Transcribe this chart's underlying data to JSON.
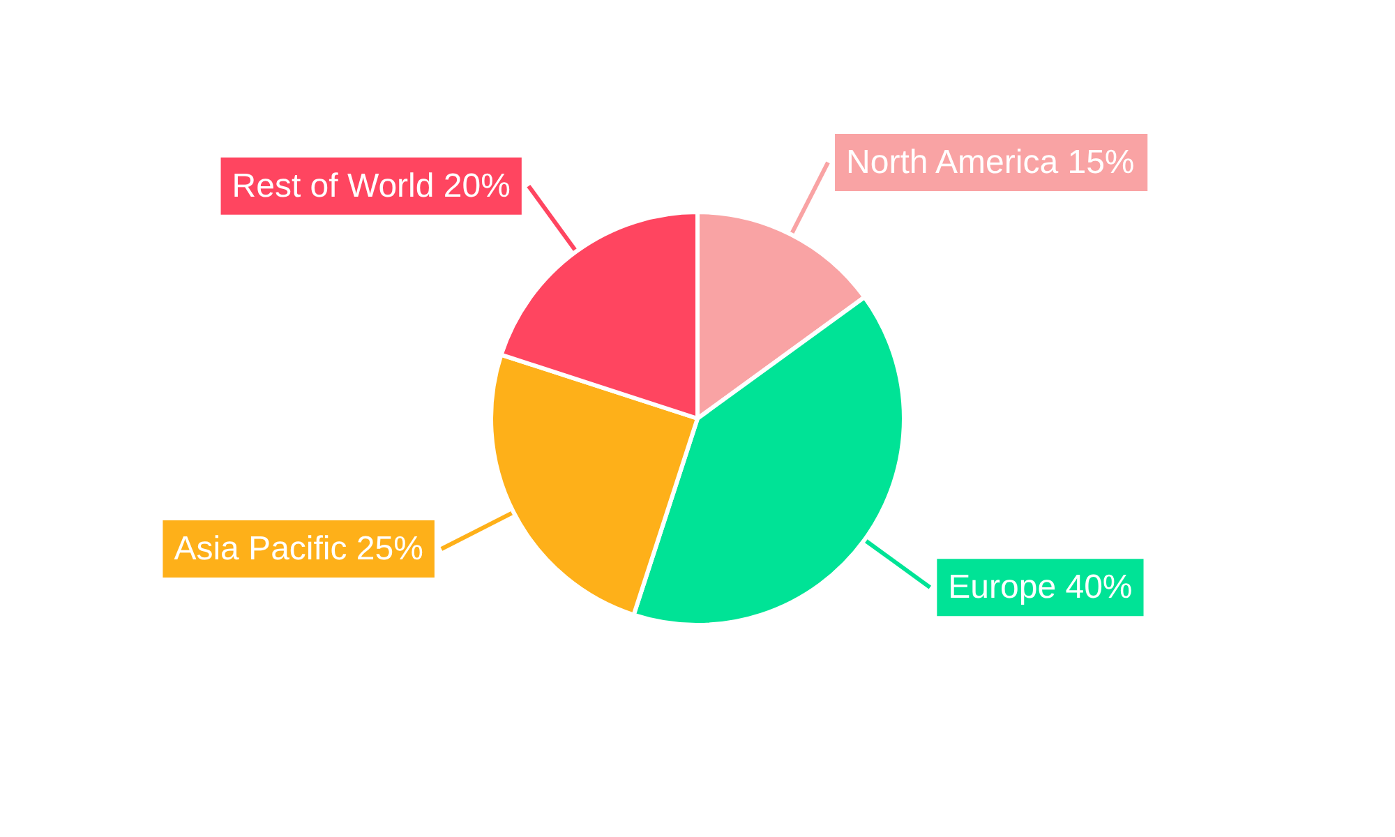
{
  "chart_data": {
    "type": "pie",
    "categories": [
      "North America",
      "Europe",
      "Asia Pacific",
      "Rest of World"
    ],
    "values": [
      15,
      40,
      25,
      20
    ],
    "value_labels": [
      "15%",
      "40%",
      "25%",
      "20%"
    ],
    "colors": [
      "#f9a3a4",
      "#00e396",
      "#feb019",
      "#ff4560"
    ]
  }
}
